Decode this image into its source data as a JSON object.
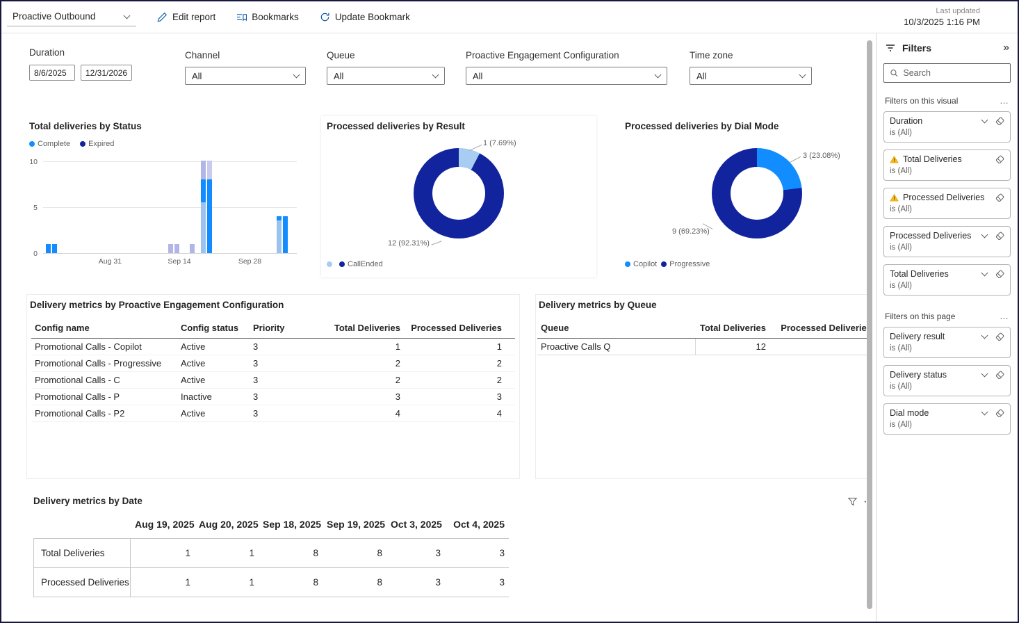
{
  "colors": {
    "accent": "#118DFF",
    "navy": "#12239E",
    "light_blue": "#A9CCF2",
    "lavender": "#B2B6E6",
    "icon_blue": "#0C59A4"
  },
  "top_bar": {
    "report_selector": "Proactive Outbound",
    "edit_report": "Edit report",
    "bookmarks": "Bookmarks",
    "update_bookmark": "Update Bookmark",
    "last_updated_label": "Last updated",
    "last_updated_value": "10/3/2025 1:16 PM"
  },
  "filter_bar": {
    "duration_label": "Duration",
    "duration_start": "8/6/2025",
    "duration_end": "12/31/2026",
    "channel_label": "Channel",
    "channel_value": "All",
    "queue_label": "Queue",
    "queue_value": "All",
    "pec_label": "Proactive Engagement Configuration",
    "pec_value": "All",
    "timezone_label": "Time zone",
    "timezone_value": "All"
  },
  "chart_data": [
    {
      "type": "bar",
      "title": "Total deliveries by Status",
      "legend": [
        {
          "label": "Complete",
          "color": "#118DFF"
        },
        {
          "label": "Expired",
          "color": "#12239E"
        }
      ],
      "ylim": [
        0,
        10
      ],
      "yticks": [
        "10",
        "5",
        "0"
      ],
      "xticks": [
        {
          "label": "Aug 31",
          "x": 26.4
        },
        {
          "label": "Sep 14",
          "x": 53.7
        },
        {
          "label": "Sep 28",
          "x": 81.5
        }
      ],
      "bars": [
        {
          "x": 1.1,
          "segments": [
            {
              "h": 1,
              "color": "#118DFF"
            }
          ]
        },
        {
          "x": 3.5,
          "segments": [
            {
              "h": 1,
              "color": "#118DFF"
            }
          ]
        },
        {
          "x": 49.3,
          "segments": [
            {
              "h": 1,
              "color": "#B2B6E6"
            }
          ]
        },
        {
          "x": 51.8,
          "segments": [
            {
              "h": 1,
              "color": "#B2B6E6"
            }
          ]
        },
        {
          "x": 57.8,
          "segments": [
            {
              "h": 1,
              "color": "#B2B6E6"
            }
          ]
        },
        {
          "x": 62.1,
          "segments": [
            {
              "h": 5.5,
              "color": "#9CC3F0"
            },
            {
              "h": 2.5,
              "color": "#118DFF"
            },
            {
              "h": 2,
              "color": "#B2B6E6"
            }
          ]
        },
        {
          "x": 64.6,
          "segments": [
            {
              "h": 8,
              "color": "#118DFF"
            },
            {
              "h": 2,
              "color": "#C7CBEE"
            }
          ]
        },
        {
          "x": 92.1,
          "segments": [
            {
              "h": 3.5,
              "color": "#9CC3F0"
            },
            {
              "h": 0.5,
              "color": "#118DFF"
            }
          ]
        },
        {
          "x": 94.5,
          "segments": [
            {
              "h": 4,
              "color": "#118DFF"
            }
          ]
        }
      ]
    },
    {
      "type": "pie",
      "title": "Processed deliveries by Result",
      "slices": [
        {
          "label": "",
          "value": 1,
          "pct": 7.69,
          "color": "#A9CCF2"
        },
        {
          "label": "CallEnded",
          "value": 12,
          "pct": 92.31,
          "color": "#12239E"
        }
      ],
      "callouts": [
        "1 (7.69%)",
        "12 (92.31%)"
      ],
      "legend": [
        {
          "label": "",
          "color": "#A9CCF2"
        },
        {
          "label": "CallEnded",
          "color": "#12239E"
        }
      ]
    },
    {
      "type": "pie",
      "title": "Processed deliveries by Dial Mode",
      "slices": [
        {
          "label": "Copilot",
          "value": 3,
          "pct": 23.08,
          "color": "#118DFF"
        },
        {
          "label": "Progressive",
          "value": 9,
          "pct": 69.23,
          "color": "#12239E"
        },
        {
          "label": "",
          "value": 1,
          "pct": 7.69,
          "color": "#12239E"
        }
      ],
      "callouts": [
        "3 (23.08%)",
        "9 (69.23%)"
      ],
      "legend": [
        {
          "label": "Copilot",
          "color": "#118DFF"
        },
        {
          "label": "Progressive",
          "color": "#12239E"
        }
      ]
    },
    {
      "type": "table",
      "title": "Delivery metrics by Proactive Engagement Configuration",
      "columns": [
        "Config name",
        "Config status",
        "Priority",
        "Total Deliveries",
        "Processed Deliveries"
      ],
      "rows": [
        [
          "Promotional Calls - Copilot",
          "Active",
          "3",
          "1",
          "1"
        ],
        [
          "Promotional Calls - Progressive",
          "Active",
          "3",
          "2",
          "2"
        ],
        [
          "Promotional Calls  - C",
          "Active",
          "3",
          "2",
          "2"
        ],
        [
          "Promotional Calls  - P",
          "Inactive",
          "3",
          "3",
          "3"
        ],
        [
          "Promotional Calls  - P2",
          "Active",
          "3",
          "4",
          "4"
        ]
      ]
    },
    {
      "type": "table",
      "title": "Delivery metrics by Queue",
      "columns": [
        "Queue",
        "Total Deliveries",
        "Processed Deliveries"
      ],
      "rows": [
        [
          "Proactive Calls Q",
          "12",
          ""
        ]
      ]
    },
    {
      "type": "table",
      "title": "Delivery metrics by Date",
      "columns": [
        "",
        "Aug 19, 2025",
        "Aug 20, 2025",
        "Sep 18, 2025",
        "Sep 19, 2025",
        "Oct 3, 2025",
        "Oct 4, 2025"
      ],
      "rows": [
        [
          "Total Deliveries",
          "1",
          "1",
          "8",
          "8",
          "3",
          "3"
        ],
        [
          "Processed Deliveries",
          "1",
          "1",
          "8",
          "8",
          "3",
          "3"
        ]
      ]
    }
  ],
  "filters_panel": {
    "title": "Filters",
    "collapse": "»",
    "search_placeholder": "Search",
    "sections": [
      {
        "label": "Filters on this visual",
        "more": "…",
        "cards": [
          {
            "name": "Duration",
            "condition": "is (All)",
            "warning": false,
            "chevron": true
          },
          {
            "name": "Total Deliveries",
            "condition": "is (All)",
            "warning": true,
            "chevron": false
          },
          {
            "name": "Processed Deliveries",
            "condition": "is (All)",
            "warning": true,
            "chevron": false
          },
          {
            "name": "Processed Deliveries",
            "condition": "is (All)",
            "warning": false,
            "chevron": true
          },
          {
            "name": "Total Deliveries",
            "condition": "is (All)",
            "warning": false,
            "chevron": true
          }
        ]
      },
      {
        "label": "Filters on this page",
        "more": "…",
        "cards": [
          {
            "name": "Delivery result",
            "condition": "is (All)",
            "warning": false,
            "chevron": true
          },
          {
            "name": "Delivery status",
            "condition": "is (All)",
            "warning": false,
            "chevron": true
          },
          {
            "name": "Dial mode",
            "condition": "is (All)",
            "warning": false,
            "chevron": true
          }
        ]
      }
    ]
  }
}
